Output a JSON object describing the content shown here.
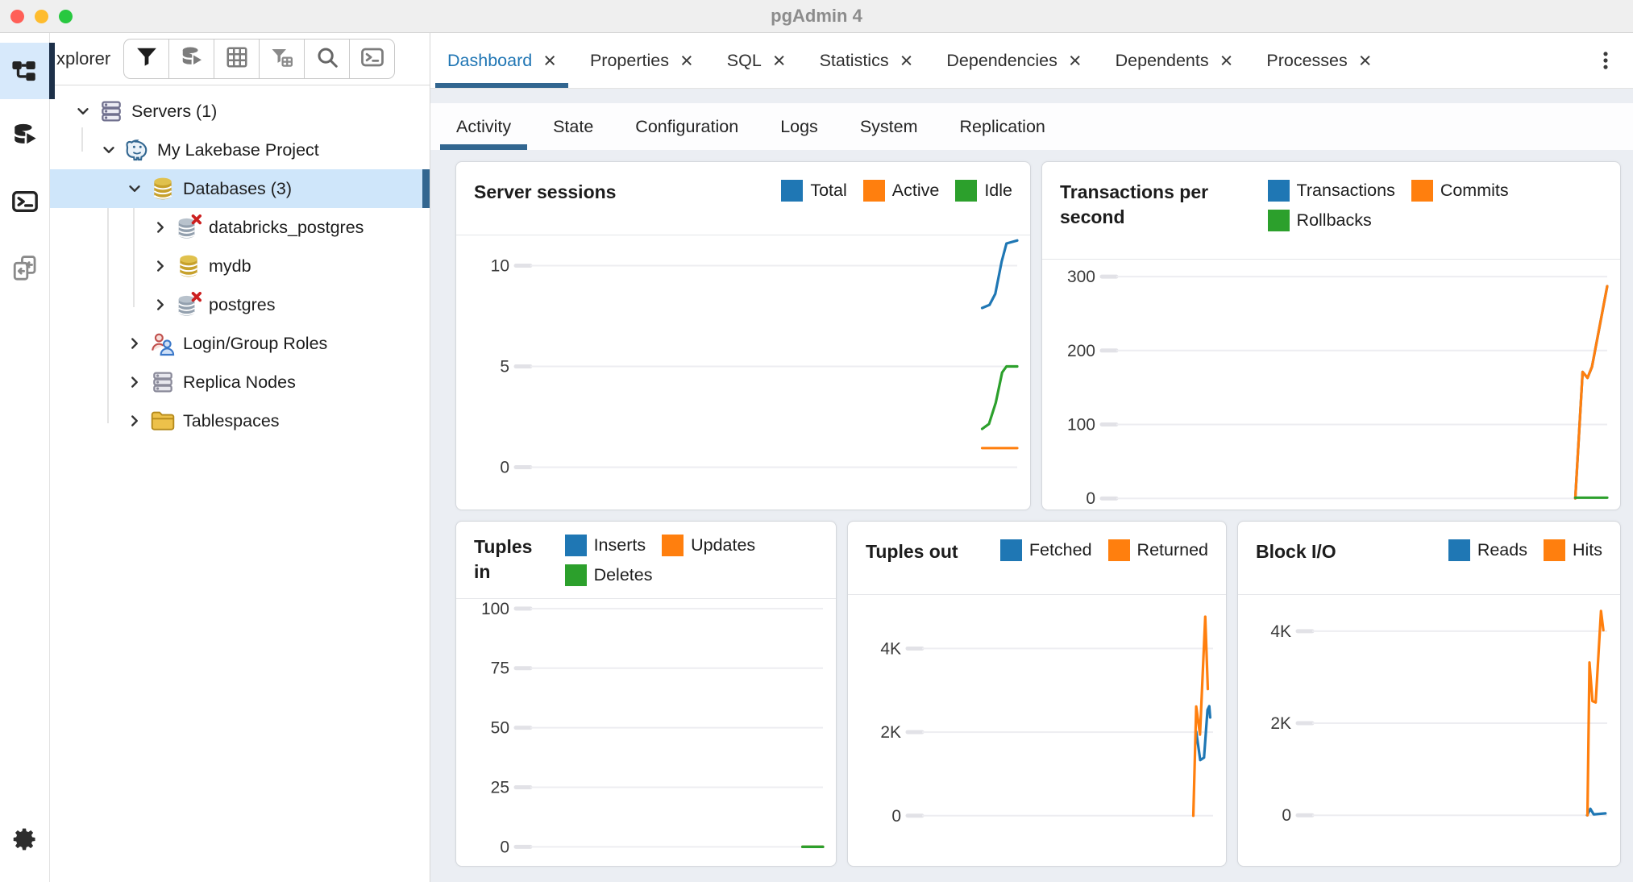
{
  "colors": {
    "primary": "#326690",
    "tab_active_text": "#2076b4",
    "selection_bg": "#cfe6fa",
    "series_blue": "#1f77b4",
    "series_orange": "#ff7f0e",
    "series_green": "#2ca02c"
  },
  "window": {
    "title": "pgAdmin 4",
    "controls": [
      "close",
      "minimize",
      "zoom"
    ]
  },
  "activity_bar": {
    "items": [
      {
        "icon": "object-explorer-icon",
        "active": true
      },
      {
        "icon": "query-tool-icon",
        "active": false
      },
      {
        "icon": "psql-tool-icon",
        "active": false
      },
      {
        "icon": "schema-diff-icon",
        "active": false
      }
    ],
    "bottom": {
      "icon": "settings-icon"
    }
  },
  "explorer": {
    "header_label": "xplorer",
    "toolbar": [
      {
        "icon": "filter-icon"
      },
      {
        "icon": "query-database-icon"
      },
      {
        "icon": "grid-icon"
      },
      {
        "icon": "filter-table-icon"
      },
      {
        "icon": "search-icon"
      },
      {
        "icon": "terminal-icon"
      }
    ],
    "tree": [
      {
        "label": "Servers (1)",
        "level": 0,
        "chevron": "down",
        "icon": "server-group-icon",
        "selected": false
      },
      {
        "label": "My Lakebase Project",
        "level": 1,
        "chevron": "down",
        "icon": "postgres-server-icon",
        "selected": false
      },
      {
        "label": "Databases (3)",
        "level": 2,
        "chevron": "down",
        "icon": "database-gold-icon",
        "selected": true
      },
      {
        "label": "databricks_postgres",
        "level": 3,
        "chevron": "right",
        "icon": "database-disconnected-icon",
        "selected": false
      },
      {
        "label": "mydb",
        "level": 3,
        "chevron": "right",
        "icon": "database-gold-icon",
        "selected": false
      },
      {
        "label": "postgres",
        "level": 3,
        "chevron": "right",
        "icon": "database-disconnected-icon",
        "selected": false
      },
      {
        "label": "Login/Group Roles",
        "level": 2,
        "chevron": "right",
        "icon": "login-roles-icon",
        "selected": false
      },
      {
        "label": "Replica Nodes",
        "level": 2,
        "chevron": "right",
        "icon": "replica-nodes-icon",
        "selected": false
      },
      {
        "label": "Tablespaces",
        "level": 2,
        "chevron": "right",
        "icon": "tablespaces-icon",
        "selected": false
      }
    ]
  },
  "tab_bar": {
    "tabs": [
      {
        "label": "Dashboard",
        "active": true,
        "close_icon": "close-icon"
      },
      {
        "label": "Properties",
        "active": false,
        "close_icon": "close-icon"
      },
      {
        "label": "SQL",
        "active": false,
        "close_icon": "close-icon"
      },
      {
        "label": "Statistics",
        "active": false,
        "close_icon": "close-icon"
      },
      {
        "label": "Dependencies",
        "active": false,
        "close_icon": "close-icon"
      },
      {
        "label": "Dependents",
        "active": false,
        "close_icon": "close-icon"
      },
      {
        "label": "Processes",
        "active": false,
        "close_icon": "close-icon"
      }
    ],
    "overflow_menu_icon": "kebab-menu-icon"
  },
  "dashboard": {
    "subtabs": [
      {
        "label": "Activity",
        "active": true
      },
      {
        "label": "State",
        "active": false
      },
      {
        "label": "Configuration",
        "active": false
      },
      {
        "label": "Logs",
        "active": false
      },
      {
        "label": "System",
        "active": false
      },
      {
        "label": "Replication",
        "active": false
      }
    ]
  },
  "chart_data": [
    {
      "type": "line",
      "title": "Server sessions",
      "legend_position": "top-right",
      "grid": true,
      "y_ticks": [
        {
          "label": "10",
          "value": 10
        },
        {
          "label": "5",
          "value": 5
        },
        {
          "label": "0",
          "value": 0
        }
      ],
      "ymin": -2.1,
      "ymax": 11.5,
      "x_range": [
        0,
        100
      ],
      "series": [
        {
          "name": "Total",
          "color": "#1f77b4",
          "points": [
            [
              92.8,
              7.9
            ],
            [
              94.3,
              8.05
            ],
            [
              95.5,
              8.6
            ],
            [
              96.8,
              10.2
            ],
            [
              97.8,
              11.1
            ],
            [
              100,
              11.25
            ]
          ]
        },
        {
          "name": "Active",
          "color": "#ff7f0e",
          "points": [
            [
              92.8,
              0.95
            ],
            [
              100,
              0.95
            ]
          ]
        },
        {
          "name": "Idle",
          "color": "#2ca02c",
          "points": [
            [
              92.8,
              1.9
            ],
            [
              94.2,
              2.15
            ],
            [
              95.6,
              3.2
            ],
            [
              96.9,
              4.7
            ],
            [
              97.8,
              5.0
            ],
            [
              100,
              5.0
            ]
          ]
        }
      ]
    },
    {
      "type": "line",
      "title": "Transactions per second",
      "legend_position": "top-right",
      "grid": true,
      "y_ticks": [
        {
          "label": "300",
          "value": 300
        },
        {
          "label": "200",
          "value": 200
        },
        {
          "label": "100",
          "value": 100
        },
        {
          "label": "0",
          "value": 0
        }
      ],
      "ymin": -15,
      "ymax": 323,
      "x_range": [
        0,
        100
      ],
      "series": [
        {
          "name": "Transactions",
          "color": "#1f77b4",
          "points": [
            [
              93.5,
              0
            ],
            [
              95.0,
              171
            ],
            [
              96.0,
              163
            ],
            [
              96.9,
              178
            ],
            [
              100,
              287
            ]
          ]
        },
        {
          "name": "Commits",
          "color": "#ff7f0e",
          "points": [
            [
              93.5,
              0
            ],
            [
              95.0,
              171
            ],
            [
              96.0,
              163
            ],
            [
              96.9,
              178
            ],
            [
              100,
              287
            ]
          ]
        },
        {
          "name": "Rollbacks",
          "color": "#2ca02c",
          "points": [
            [
              93.5,
              1
            ],
            [
              100,
              1
            ]
          ]
        }
      ]
    },
    {
      "type": "line",
      "title": "Tuples in",
      "legend_position": "top",
      "grid": true,
      "y_ticks": [
        {
          "label": "100",
          "value": 100
        },
        {
          "label": "75",
          "value": 75
        },
        {
          "label": "50",
          "value": 50
        },
        {
          "label": "25",
          "value": 25
        },
        {
          "label": "0",
          "value": 0
        }
      ],
      "ymin": -8,
      "ymax": 104,
      "x_range": [
        0,
        100
      ],
      "series": [
        {
          "name": "Inserts",
          "color": "#1f77b4",
          "points": [
            [
              93,
              0
            ],
            [
              100,
              0
            ]
          ]
        },
        {
          "name": "Updates",
          "color": "#ff7f0e",
          "points": [
            [
              93,
              0
            ],
            [
              100,
              0
            ]
          ]
        },
        {
          "name": "Deletes",
          "color": "#2ca02c",
          "points": [
            [
              93,
              0
            ],
            [
              100,
              0
            ]
          ]
        }
      ]
    },
    {
      "type": "line",
      "title": "Tuples out",
      "legend_position": "top-right",
      "grid": true,
      "y_ticks": [
        {
          "label": "4K",
          "value": 4000
        },
        {
          "label": "2K",
          "value": 2000
        },
        {
          "label": "0",
          "value": 0
        }
      ],
      "ymin": -1200,
      "ymax": 5280,
      "x_range": [
        0,
        100
      ],
      "series": [
        {
          "name": "Fetched",
          "color": "#1f77b4",
          "points": [
            [
              94.2,
              2010
            ],
            [
              95.6,
              1330
            ],
            [
              96.9,
              1390
            ],
            [
              98.1,
              2530
            ],
            [
              98.7,
              2620
            ],
            [
              99.0,
              2350
            ]
          ]
        },
        {
          "name": "Returned",
          "color": "#ff7f0e",
          "points": [
            [
              93.2,
              0
            ],
            [
              94.2,
              2610
            ],
            [
              95.5,
              1940
            ],
            [
              97.3,
              4760
            ],
            [
              98.2,
              3030
            ]
          ]
        }
      ]
    },
    {
      "type": "line",
      "title": "Block I/O",
      "legend_position": "top-right",
      "grid": true,
      "y_ticks": [
        {
          "label": "4K",
          "value": 4000
        },
        {
          "label": "2K",
          "value": 2000
        },
        {
          "label": "0",
          "value": 0
        }
      ],
      "ymin": -1100,
      "ymax": 4786,
      "x_range": [
        0,
        100
      ],
      "series": [
        {
          "name": "Reads",
          "color": "#1f77b4",
          "points": [
            [
              93.2,
              0
            ],
            [
              94.3,
              140
            ],
            [
              95.4,
              20
            ],
            [
              99.4,
              40
            ]
          ]
        },
        {
          "name": "Hits",
          "color": "#ff7f0e",
          "points": [
            [
              93.3,
              0
            ],
            [
              94.0,
              3320
            ],
            [
              95.0,
              2480
            ],
            [
              96.1,
              2450
            ],
            [
              97.9,
              4440
            ],
            [
              98.7,
              4020
            ]
          ]
        }
      ]
    }
  ]
}
